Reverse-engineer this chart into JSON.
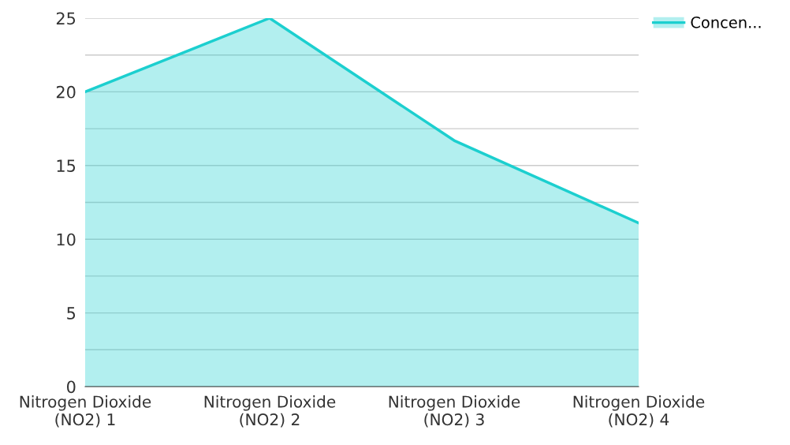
{
  "chart_data": {
    "type": "area",
    "categories": [
      "Nitrogen Dioxide\n(NO2) 1",
      "Nitrogen Dioxide\n(NO2) 2",
      "Nitrogen Dioxide\n(NO2) 3",
      "Nitrogen Dioxide\n(NO2) 4"
    ],
    "series": [
      {
        "name": "Concen...",
        "color": "#1ccfcf",
        "values": [
          20,
          25,
          16.7,
          11.1
        ]
      }
    ],
    "ylim": [
      0,
      25
    ],
    "yticks": [
      0,
      {
        "value": 2.5,
        "label": null
      },
      5,
      {
        "value": 7.5,
        "label": null
      },
      10,
      {
        "value": 12.5,
        "label": null
      },
      15,
      {
        "value": 17.5,
        "label": null
      },
      20,
      {
        "value": 22.5,
        "label": null
      },
      25
    ],
    "grid": "y",
    "legend": "top right"
  }
}
